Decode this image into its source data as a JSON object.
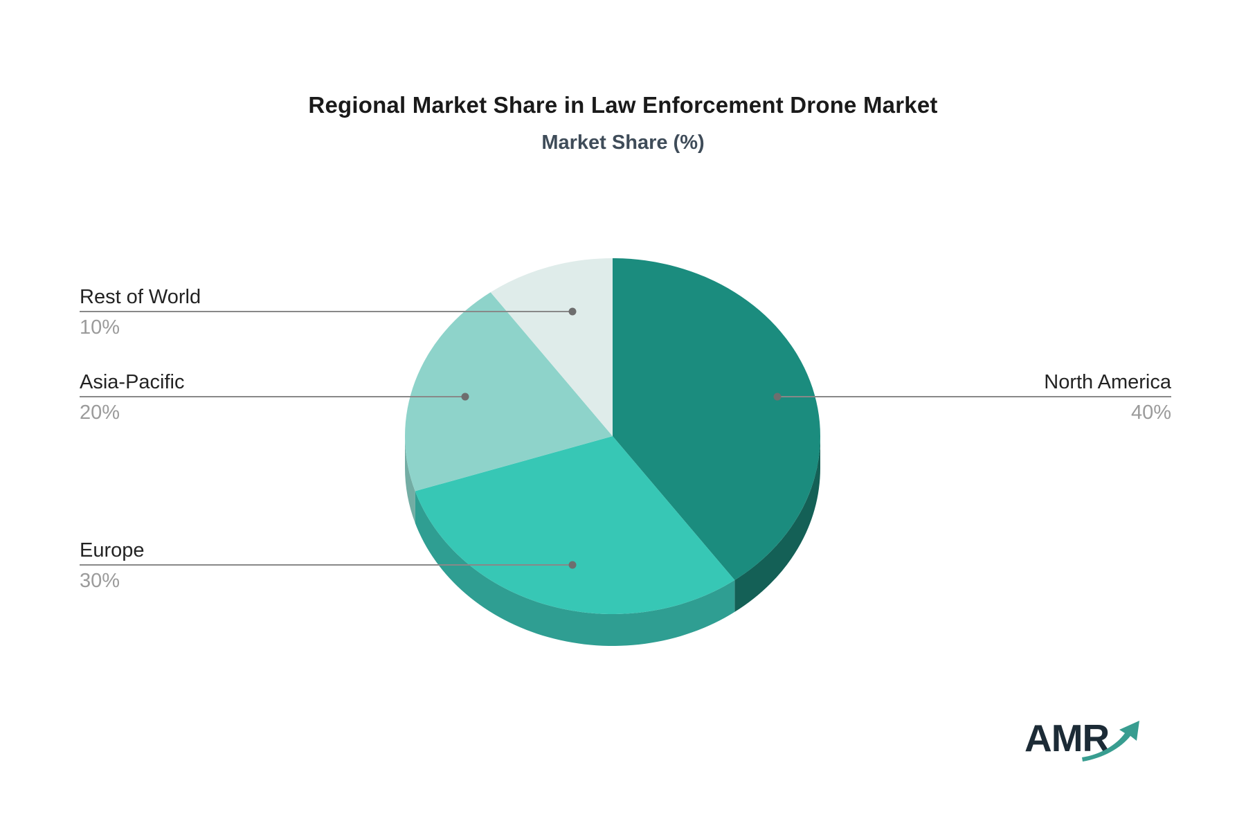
{
  "header": {
    "title": "Regional Market Share in Law Enforcement Drone Market",
    "subtitle": "Market Share (%)"
  },
  "chart_data": {
    "type": "pie",
    "title": "Regional Market Share in Law Enforcement Drone Market",
    "subtitle": "Market Share (%)",
    "unit": "%",
    "categories": [
      "North America",
      "Europe",
      "Asia-Pacific",
      "Rest of World"
    ],
    "values": [
      40,
      30,
      20,
      10
    ],
    "value_labels": [
      "40%",
      "30%",
      "20%",
      "10%"
    ],
    "slugs": [
      "north-america",
      "europe",
      "asia-pacific",
      "rest-of-world"
    ],
    "colors": [
      "#1b8c7e",
      "#37c7b5",
      "#8ed3ca",
      "#dfecea"
    ],
    "side_colors": [
      "#146056",
      "#2f9e92",
      "#73ada4",
      "#c4dbd6"
    ],
    "style": "pie-3d",
    "start_angle_deg": 90,
    "direction": "clockwise",
    "legend_position": "none",
    "label_style": "leader-lines"
  },
  "callouts": [
    {
      "name": "North America",
      "value": "40%"
    },
    {
      "name": "Europe",
      "value": "30%"
    },
    {
      "name": "Asia-Pacific",
      "value": "20%"
    },
    {
      "name": "Rest of World",
      "value": "10%"
    }
  ],
  "logo": {
    "text": "AMR",
    "text_color": "#1c2b36",
    "arrow_color": "#389d90"
  },
  "colors": {
    "leader_line": "#888888",
    "leader_dot": "#6e6e6e",
    "title": "#1a1a1a",
    "subtitle": "#3f4c59",
    "label_name": "#232323",
    "label_value": "#9b9b9b",
    "background": "#ffffff"
  }
}
